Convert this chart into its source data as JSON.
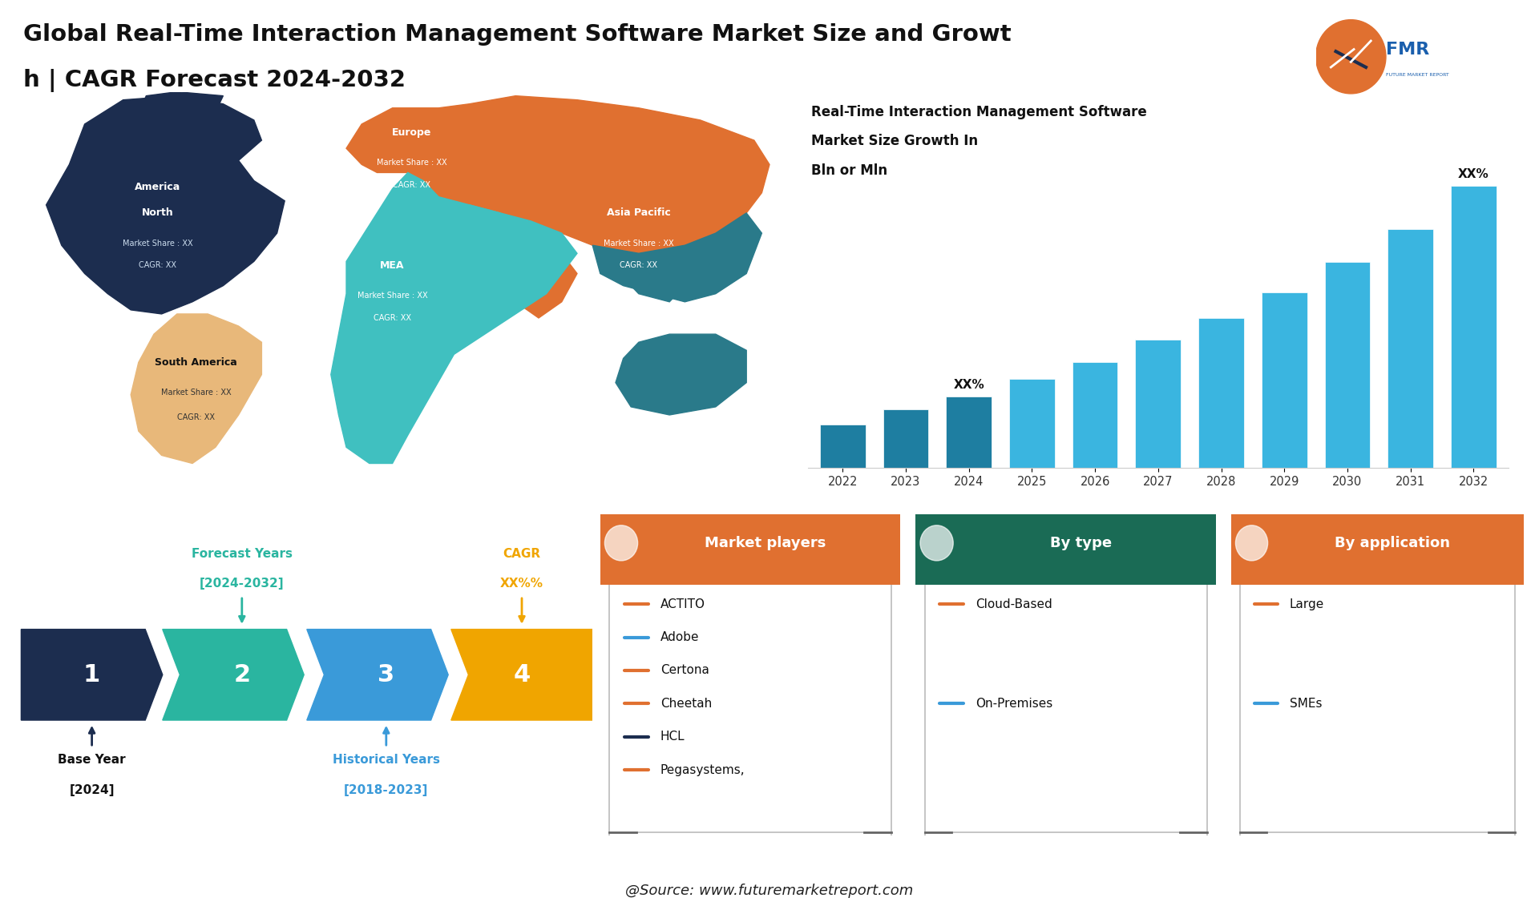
{
  "title_line1": "Global Real-Time Interaction Management Software Market Size and Growt",
  "title_line2": "h | CAGR Forecast 2024-2032",
  "bar_chart_title_line1": "Real-Time Interaction Management Software",
  "bar_chart_title_line2": "Market Size Growth In",
  "bar_chart_title_line3": "Bln or Mln",
  "bar_years": [
    "2022",
    "2023",
    "2024",
    "2025",
    "2026",
    "2027",
    "2028",
    "2029",
    "2030",
    "2031",
    "2032"
  ],
  "bar_values": [
    1.0,
    1.35,
    1.65,
    2.05,
    2.45,
    2.95,
    3.45,
    4.05,
    4.75,
    5.5,
    6.5
  ],
  "bar_color_dark": "#1e7ea1",
  "bar_color_light": "#3ab5e0",
  "bar_annotation_2024": "XX%",
  "bar_annotation_2032": "XX%",
  "na_color": "#1c2d4f",
  "sa_color": "#e8b87a",
  "eu_color": "#e07030",
  "asia_color": "#e07030",
  "ap_color": "#2a7a8a",
  "mea_color": "#40c0c0",
  "aus_color": "#2a7a8a",
  "market_players_title": "Market players",
  "market_players_bg": "#e07030",
  "market_players": [
    "ACTITO",
    "Adobe",
    "Certona",
    "Cheetah",
    "HCL",
    "Pegasystems,"
  ],
  "market_players_bullet_colors": [
    "#e07030",
    "#3a9ad9",
    "#e07030",
    "#e07030",
    "#1c2d4f",
    "#e07030"
  ],
  "by_type_title": "By type",
  "by_type_bg": "#1a6b55",
  "by_type": [
    "Cloud-Based",
    "On-Premises"
  ],
  "by_type_bullet_colors": [
    "#e07030",
    "#3a9ad9"
  ],
  "by_application_title": "By application",
  "by_application_bg": "#e07030",
  "by_application": [
    "Large",
    "SMEs"
  ],
  "by_application_bullet_colors": [
    "#e07030",
    "#3a9ad9"
  ],
  "source_text": "@Source: www.futuremarketreport.com",
  "bg_color": "#ffffff",
  "fmr_color": "#1a5fad",
  "fmr_text": "FUTURE MARKET REPORT",
  "seg_colors": [
    "#1c2d4f",
    "#2ab5a0",
    "#3a9ad9",
    "#f0a500"
  ],
  "forecast_label_color": "#2ab5a0",
  "historical_label_color": "#3a9ad9",
  "cagr_label_color": "#f0a500",
  "base_year_label_color": "#111111"
}
